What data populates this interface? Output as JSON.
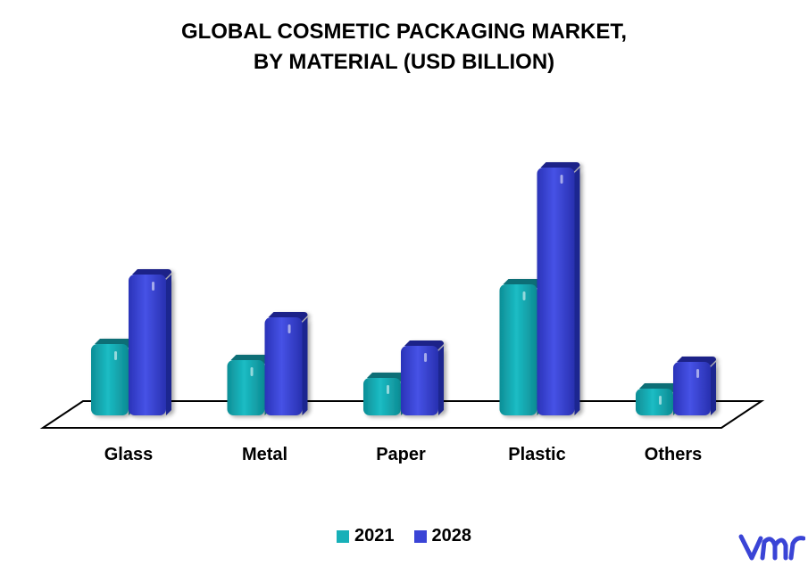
{
  "chart_data": {
    "type": "bar",
    "title_line1": "GLOBAL COSMETIC PACKAGING MARKET,",
    "title_line2": "BY MATERIAL (USD BILLION)",
    "xlabel": "",
    "ylabel": "",
    "categories": [
      "Glass",
      "Metal",
      "Paper",
      "Plastic",
      "Others"
    ],
    "series": [
      {
        "name": "2021",
        "color": "#17b0b8",
        "values": [
          80,
          62,
          42,
          147,
          30
        ]
      },
      {
        "name": "2028",
        "color": "#3a44d6",
        "values": [
          158,
          110,
          78,
          278,
          60
        ]
      }
    ],
    "ylim": [
      0,
      300
    ],
    "grid": false,
    "legend_position": "bottom"
  },
  "logo": {
    "icon": "vmr-logo-icon",
    "color": "#3a44d6"
  }
}
